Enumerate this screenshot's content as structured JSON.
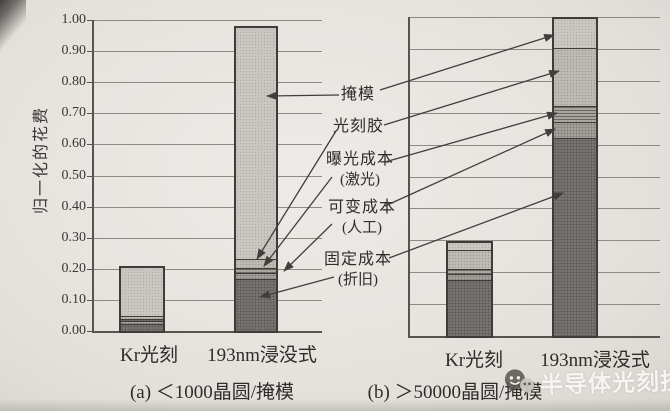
{
  "figure": {
    "y_axis_label": "归一化的花费",
    "cost_labels": [
      {
        "key": "mask",
        "label": "掩模",
        "sub": ""
      },
      {
        "key": "resist",
        "label": "光刻胶",
        "sub": ""
      },
      {
        "key": "exposure",
        "label": "曝光成本",
        "sub": "(激光)"
      },
      {
        "key": "variable",
        "label": "可变成本",
        "sub": "(人工)"
      },
      {
        "key": "fixed",
        "label": "固定成本",
        "sub": "(折旧)"
      }
    ]
  },
  "watermark": {
    "icon": "wechat-emoji-logo",
    "text": "半导体光刻技术"
  },
  "colors": {
    "mask": "#cac7c2",
    "resist": "#bdbab4",
    "exposure": "#8f8c88",
    "variable": "#a5a29d",
    "fixed": "#7b7874",
    "bar_border": "#3e3b38",
    "grid": "#8e8b86",
    "axis": "#57544f",
    "arrow": "#413f3c",
    "background": "#e8e5e1"
  },
  "chart_data": [
    {
      "type": "bar",
      "stacked": true,
      "title": "(a) ＜1000晶圆/掩模",
      "categories": [
        "Kr光刻",
        "193nm浸没式"
      ],
      "ylabel": "归一化的花费",
      "ylim": [
        0.0,
        1.0
      ],
      "ytick_step": 0.1,
      "ytick_labels": [
        "0.00",
        "0.10",
        "0.20",
        "0.30",
        "0.40",
        "0.50",
        "0.60",
        "0.70",
        "0.80",
        "0.90",
        "1.00"
      ],
      "grid": true,
      "series": [
        {
          "key": "fixed",
          "name": "固定成本(折旧)",
          "values": [
            0.022,
            0.168
          ]
        },
        {
          "key": "variable",
          "name": "可变成本(人工)",
          "values": [
            0.01,
            0.019
          ]
        },
        {
          "key": "exposure",
          "name": "曝光成本(激光)",
          "values": [
            0.009,
            0.016
          ]
        },
        {
          "key": "resist",
          "name": "光刻胶",
          "values": [
            0.009,
            0.029
          ]
        },
        {
          "key": "mask",
          "name": "掩模",
          "values": [
            0.16,
            0.748
          ]
        }
      ],
      "totals": [
        0.21,
        0.98
      ]
    },
    {
      "type": "bar",
      "stacked": true,
      "title": "(b) ＞50000晶圆/掩模",
      "categories": [
        "Kr光刻",
        "193nm浸没式"
      ],
      "ylabel": "",
      "ylim": [
        0.0,
        1.0
      ],
      "ytick_step": 0.1,
      "ytick_labels": [],
      "grid": true,
      "series": [
        {
          "key": "fixed",
          "name": "固定成本(折旧)",
          "values": [
            0.179,
            0.623
          ]
        },
        {
          "key": "variable",
          "name": "可变成本(人工)",
          "values": [
            0.018,
            0.053
          ]
        },
        {
          "key": "exposure",
          "name": "曝光成本(激光)",
          "values": [
            0.018,
            0.05
          ]
        },
        {
          "key": "resist",
          "name": "光刻胶",
          "values": [
            0.06,
            0.183
          ]
        },
        {
          "key": "mask",
          "name": "掩模",
          "values": [
            0.022,
            0.091
          ]
        }
      ],
      "totals": [
        0.297,
        1.0
      ]
    }
  ]
}
